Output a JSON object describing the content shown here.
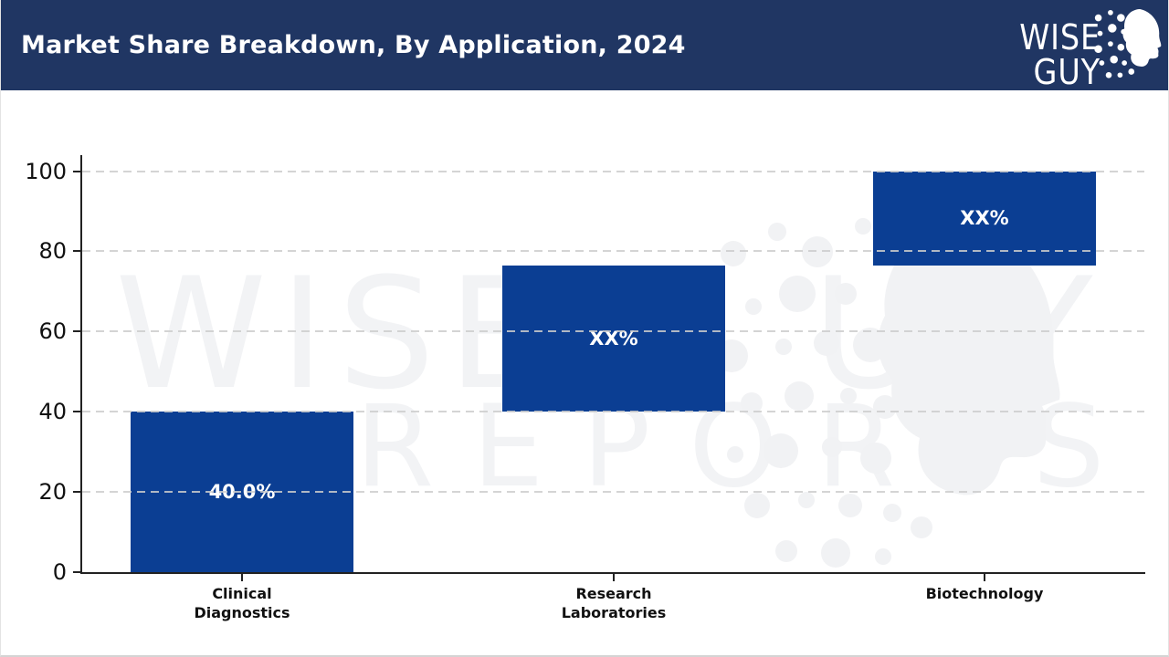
{
  "header": {
    "title": "Market Share Breakdown, By Application, 2024",
    "logo": {
      "line1": "WISE GUY",
      "line2": "REPORTS"
    }
  },
  "watermark": {
    "line1": "WISE G U Y",
    "line2": "REPORTS"
  },
  "colors": {
    "header_bg": "#203663",
    "bar_blue": "#0b3e93",
    "grid": "#cdcdcd",
    "axis": "#222222",
    "bar_label": "#ffffff",
    "watermark": "#f2f3f5"
  },
  "chart_data": {
    "type": "bar",
    "subtype": "waterfall",
    "title": "Market Share Breakdown, By Application, 2024",
    "categories": [
      "Clinical Diagnostics",
      "Research Laboratories",
      "Biotechnology"
    ],
    "category_lines": [
      [
        "Clinical",
        "Diagnostics"
      ],
      [
        "Research",
        "Laboratories"
      ],
      [
        "Biotechnology"
      ]
    ],
    "segments": [
      {
        "category": "Clinical Diagnostics",
        "start": 0,
        "end": 40,
        "label": "40.0%"
      },
      {
        "category": "Research Laboratories",
        "start": 40,
        "end": 76.4,
        "label": "XX%"
      },
      {
        "category": "Biotechnology",
        "start": 76.4,
        "end": 100,
        "label": "XX%"
      }
    ],
    "yticks": [
      0,
      20,
      40,
      60,
      80,
      100
    ],
    "ylim": [
      0,
      104
    ],
    "grid": "horizontal-dashed",
    "legend": null,
    "xlabel": "",
    "ylabel": ""
  }
}
